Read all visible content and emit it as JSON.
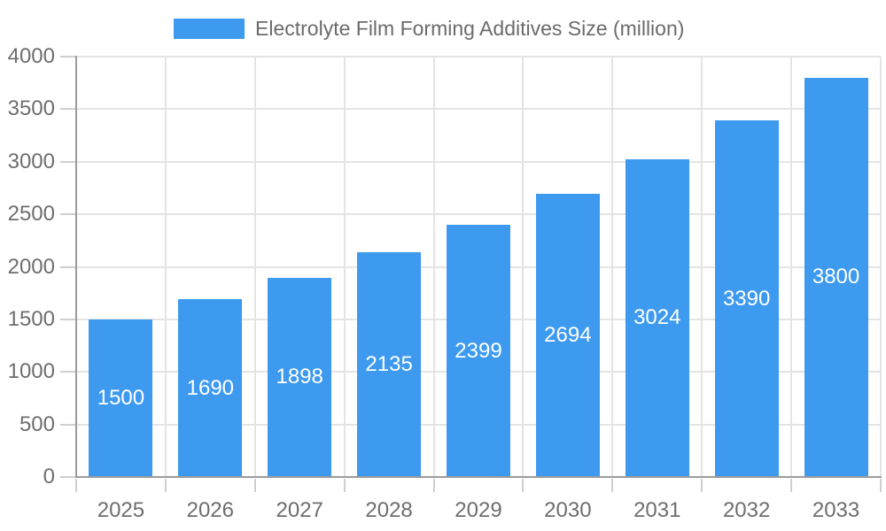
{
  "legend": {
    "label": "Electrolyte Film Forming Additives Size (million)"
  },
  "chart_data": {
    "type": "bar",
    "title": "",
    "legend_entries": [
      "Electrolyte Film Forming Additives Size (million)"
    ],
    "legend_position": "top",
    "categories": [
      "2025",
      "2026",
      "2027",
      "2028",
      "2029",
      "2030",
      "2031",
      "2032",
      "2033"
    ],
    "values": [
      1500,
      1690,
      1898,
      2135,
      2399,
      2694,
      3024,
      3390,
      3800
    ],
    "value_labels_shown": true,
    "value_label_position": "inside-center",
    "xlabel": "",
    "ylabel": "",
    "ylim": [
      0,
      4000
    ],
    "ytick_step": 500,
    "yticks": [
      0,
      500,
      1000,
      1500,
      2000,
      2500,
      3000,
      3500,
      4000
    ],
    "grid": true,
    "colors": {
      "bar": "#3D9AEF",
      "value_label": "#ffffff",
      "axis_label": "#6e6e6e",
      "legend_text": "#6b6b6b",
      "grid_line": "#e4e4e4",
      "tick_line": "#cfcfcf",
      "axis_line": "#9b9b9b",
      "background": "#ffffff"
    }
  }
}
